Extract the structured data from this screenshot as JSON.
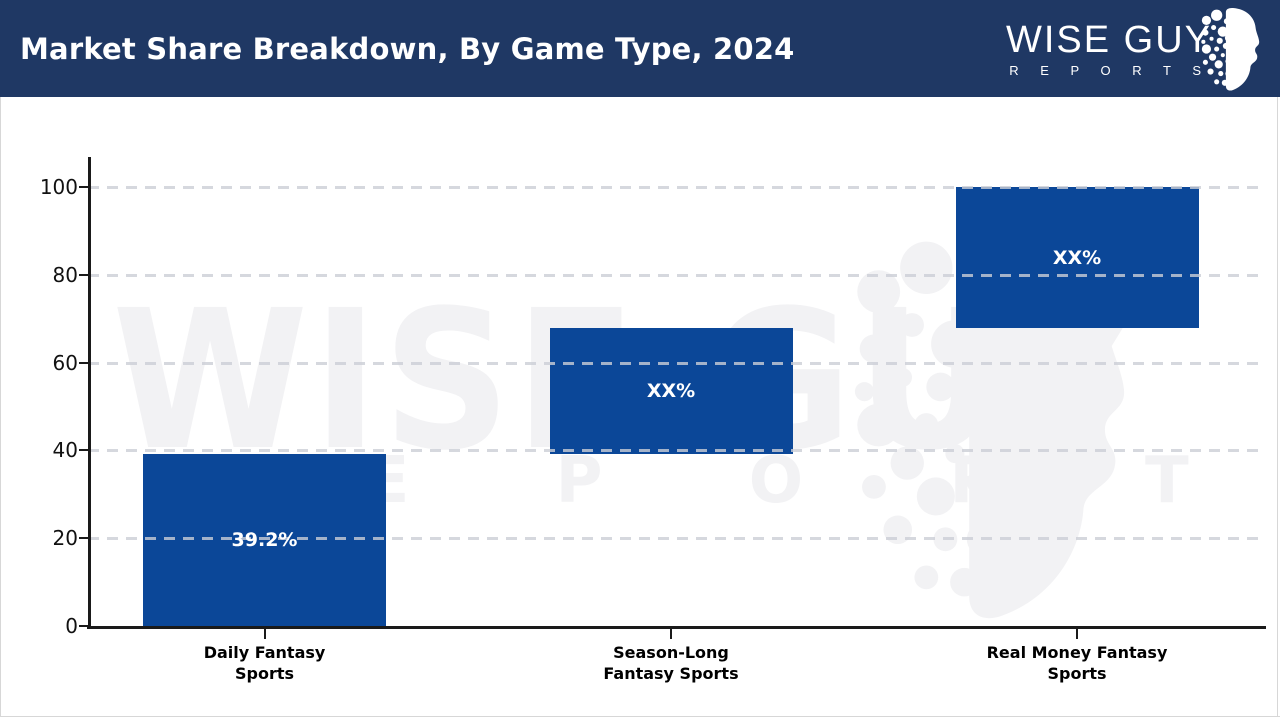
{
  "header": {
    "title": "Market Share Breakdown, By Game Type, 2024",
    "bg_color": "#1f3864",
    "logo": {
      "line1": "WISE GUY",
      "line2": "R E P O R T S"
    }
  },
  "watermark": {
    "line1": "WISE GUY",
    "line2": "R E P O R T S"
  },
  "chart_data": {
    "type": "bar",
    "variant": "waterfall-breakdown-totaling-100",
    "title": "Market Share Breakdown, By Game Type, 2024",
    "categories": [
      "Daily Fantasy\nSports",
      "Season-Long\nFantasy Sports",
      "Real Money Fantasy\nSports"
    ],
    "series": [
      {
        "name": "Market share (%)",
        "segments": [
          {
            "category": "Daily Fantasy Sports",
            "start": 0,
            "end": 39.2,
            "label": "39.2%"
          },
          {
            "category": "Season-Long Fantasy Sports",
            "start": 39.2,
            "end": 67.8,
            "label": "XX%"
          },
          {
            "category": "Real Money Fantasy Sports",
            "start": 67.8,
            "end": 100,
            "label": "XX%"
          }
        ]
      }
    ],
    "xlabel": "",
    "ylabel": "",
    "ylim": [
      0,
      100
    ],
    "yticks": [
      0,
      20,
      40,
      60,
      80,
      100
    ],
    "grid": "horizontal dashed, drawn above bars",
    "legend": "none",
    "bar_color": "#0b4798",
    "bar_label_color": "#ffffff",
    "axis_color": "#1a1a1a",
    "gridline_color": "#d2d5dc"
  }
}
